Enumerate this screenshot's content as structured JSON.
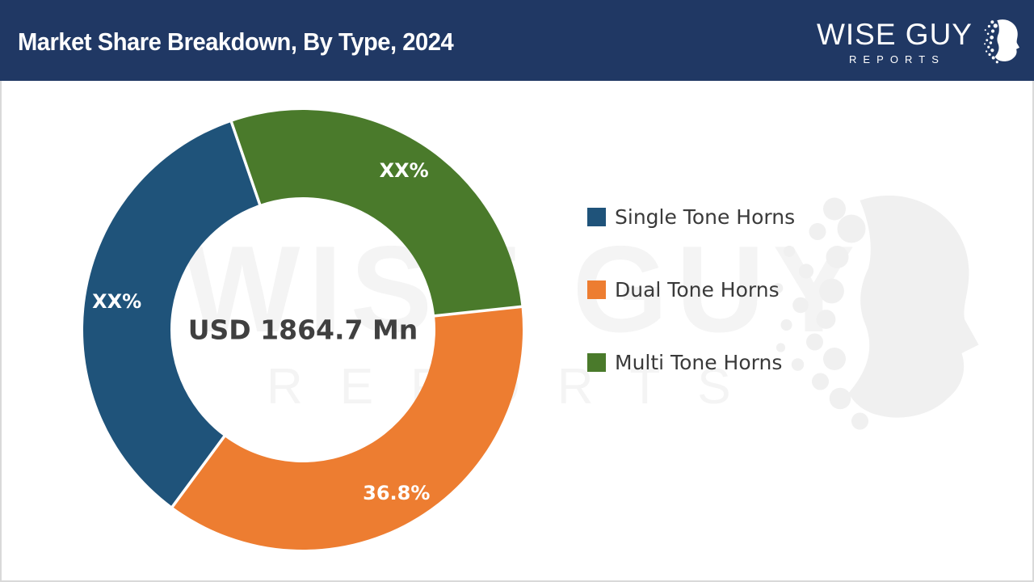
{
  "header": {
    "title": "Market Share Breakdown, By Type, 2024",
    "bg_color": "#203864"
  },
  "logo": {
    "name_top": "WISE GUY",
    "name_bottom": "REPORTS"
  },
  "watermark": {
    "line1": "WISE GUY",
    "line2": "REPORTS"
  },
  "chart_data": {
    "type": "pie",
    "subtype": "donut",
    "title": "Market Share Breakdown, By Type, 2024",
    "center_label": "USD 1864.7 Mn",
    "start_angle_deg": -19,
    "legend_position": "right",
    "segments": [
      {
        "name": "Multi Tone Horns",
        "label": "XX%",
        "value_pct": 28.6,
        "color": "#4a7a2b"
      },
      {
        "name": "Dual Tone Horns",
        "label": "36.8%",
        "value_pct": 36.8,
        "color": "#ed7d31"
      },
      {
        "name": "Single Tone Horns",
        "label": "XX%",
        "value_pct": 34.6,
        "color": "#1f537a"
      }
    ],
    "legend": [
      {
        "label": "Single Tone Horns",
        "color": "#1f537a"
      },
      {
        "label": "Dual Tone Horns",
        "color": "#ed7d31"
      },
      {
        "label": "Multi Tone Horns",
        "color": "#4a7a2b"
      }
    ]
  }
}
